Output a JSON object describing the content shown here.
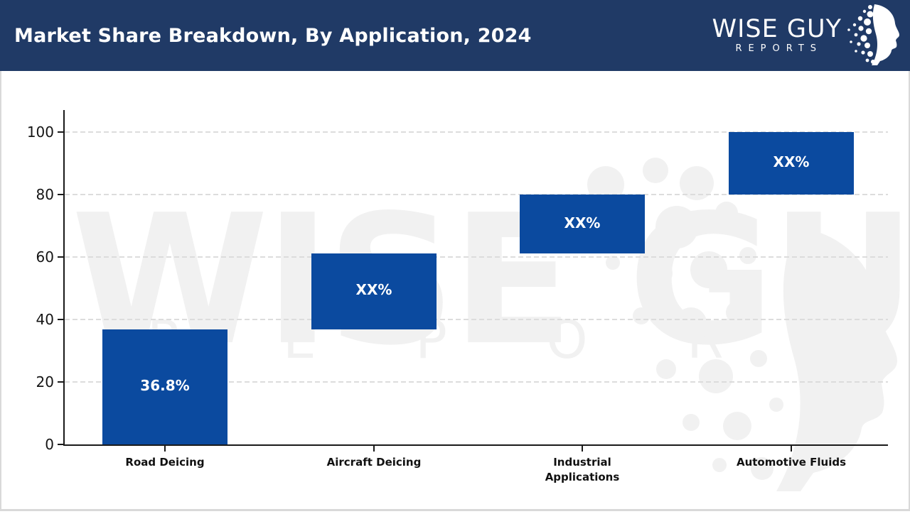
{
  "header": {
    "title": "Market Share Breakdown, By Application, 2024",
    "logo": {
      "line1": "WISE GUY",
      "line2": "REPORTS"
    }
  },
  "watermark": {
    "line1": "WISE GUY",
    "line2": "REPORTS"
  },
  "colors": {
    "header_bg": "#203a66",
    "bar": "#0b4a9f",
    "grid": "#dcdcdc",
    "axis": "#1a1a1a",
    "watermark": "#f1f1f1",
    "label_text": "#ffffff"
  },
  "chart_data": {
    "type": "bar",
    "subtype": "waterfall",
    "title": "Market Share Breakdown, By Application, 2024",
    "categories": [
      "Road Deicing",
      "Aircraft Deicing",
      "Industrial\nApplications",
      "Automotive Fluids"
    ],
    "segments": [
      {
        "category": "Road Deicing",
        "label": "36.8%",
        "start": 0,
        "end": 36.8
      },
      {
        "category": "Aircraft Deicing",
        "label": "XX%",
        "start": 36.8,
        "end": 61.2
      },
      {
        "category": "Industrial Applications",
        "label": "XX%",
        "start": 61.2,
        "end": 79.9
      },
      {
        "category": "Automotive Fluids",
        "label": "XX%",
        "start": 79.9,
        "end": 100
      }
    ],
    "yticks": [
      0,
      20,
      40,
      60,
      80,
      100
    ],
    "ylim": [
      0,
      107
    ],
    "xlabel": "",
    "ylabel": "",
    "grid": "dashed-horizontal",
    "legend": "none",
    "bar_value_position": "center"
  }
}
